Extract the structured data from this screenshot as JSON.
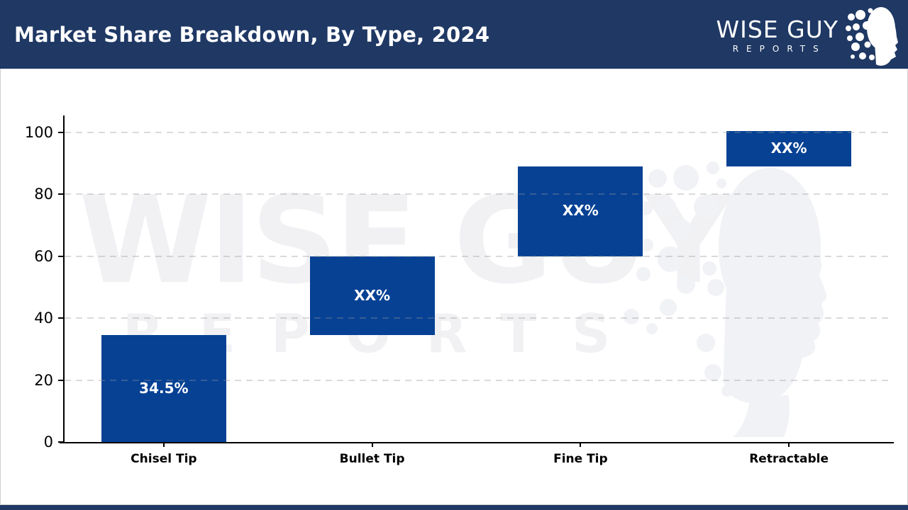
{
  "header": {
    "title": "Market Share Breakdown, By Type, 2024",
    "bg_color": "#1f3864",
    "logo": {
      "wordmark": "WISE GUY",
      "subtitle": "REPORTS"
    }
  },
  "watermark": {
    "wordmark": "WISE GUY",
    "subtitle": "REPORTS"
  },
  "chart_data": {
    "type": "bar",
    "subtype": "waterfall-floating-bars",
    "title": "Market Share Breakdown, By Type, 2024",
    "categories": [
      "Chisel Tip",
      "Bullet Tip",
      "Fine Tip",
      "Retractable"
    ],
    "bars": [
      {
        "category": "Chisel Tip",
        "label": "34.5%",
        "start": 0,
        "end": 34.5
      },
      {
        "category": "Bullet Tip",
        "label": "XX%",
        "start": 34.5,
        "end": 60
      },
      {
        "category": "Fine Tip",
        "label": "XX%",
        "start": 60,
        "end": 89
      },
      {
        "category": "Retractable",
        "label": "XX%",
        "start": 89,
        "end": 100.5
      }
    ],
    "xlabel": "",
    "ylabel": "",
    "ylim": [
      0,
      105
    ],
    "yticks": [
      0,
      20,
      40,
      60,
      80,
      100
    ],
    "grid": "horizontal-dashed",
    "legend": "none",
    "bar_color": "#064194",
    "bar_label_color": "#ffffff",
    "axis_color": "#000000",
    "gridline_color": "#dcdcdc"
  }
}
